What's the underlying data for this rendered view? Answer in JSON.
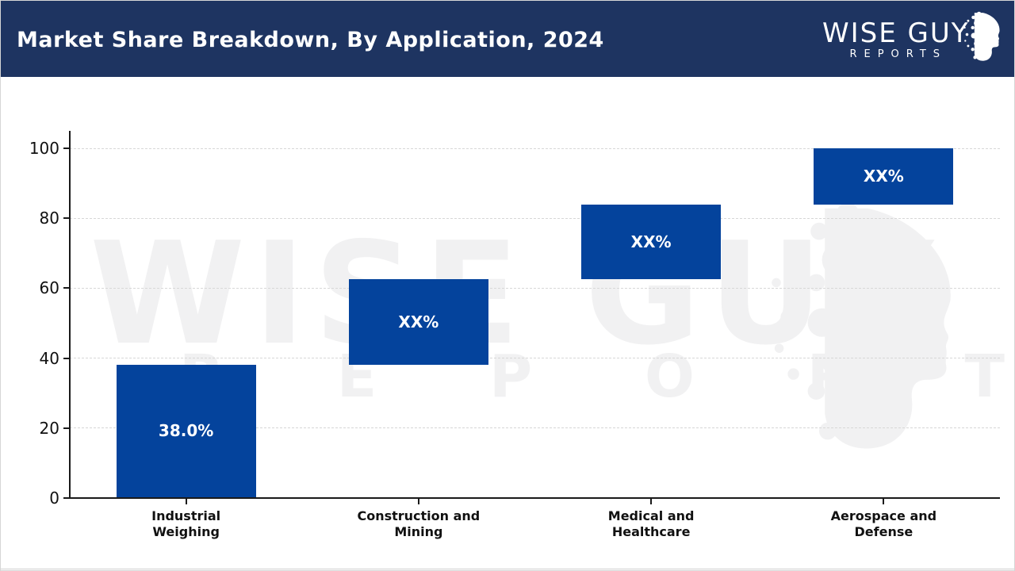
{
  "header": {
    "title": "Market Share Breakdown, By Application, 2024",
    "background": "#1e3461",
    "logo": {
      "line1": "WISE GUY",
      "line2": "REPORTS"
    }
  },
  "watermark": {
    "line1": "WISE GUY",
    "line2": "R E P O R T S"
  },
  "colors": {
    "header_bg": "#1e3461",
    "bar": "#04439c",
    "bar_label": "#ffffff",
    "grid": "#d7d7d7",
    "axis": "#1a1a1a",
    "watermark": "#f1f1f2",
    "page_border": "#d6d6d6"
  },
  "chart_data": {
    "type": "bar",
    "subtype": "waterfall",
    "title": "Market Share Breakdown, By Application, 2024",
    "categories": [
      [
        "Industrial",
        "Weighing"
      ],
      [
        "Construction and",
        "Mining"
      ],
      [
        "Medical and",
        "Healthcare"
      ],
      [
        "Aerospace and",
        "Defense"
      ]
    ],
    "segments": [
      {
        "category": "Industrial Weighing",
        "start": 0,
        "end": 38.0,
        "value": 38.0,
        "label": "38.0%"
      },
      {
        "category": "Construction and Mining",
        "start": 38.0,
        "end": 62.5,
        "value": 24.5,
        "label": "XX%"
      },
      {
        "category": "Medical and Healthcare",
        "start": 62.5,
        "end": 84.0,
        "value": 21.5,
        "label": "XX%"
      },
      {
        "category": "Aerospace and Defense",
        "start": 84.0,
        "end": 100.0,
        "value": 16.0,
        "label": "XX%"
      }
    ],
    "ylim": [
      0,
      100
    ],
    "yticks": [
      0,
      20,
      40,
      60,
      80,
      100
    ],
    "xlabel": "",
    "ylabel": "",
    "grid": "horizontal-dashed",
    "legend": null,
    "bar_width_fraction": 0.6
  }
}
